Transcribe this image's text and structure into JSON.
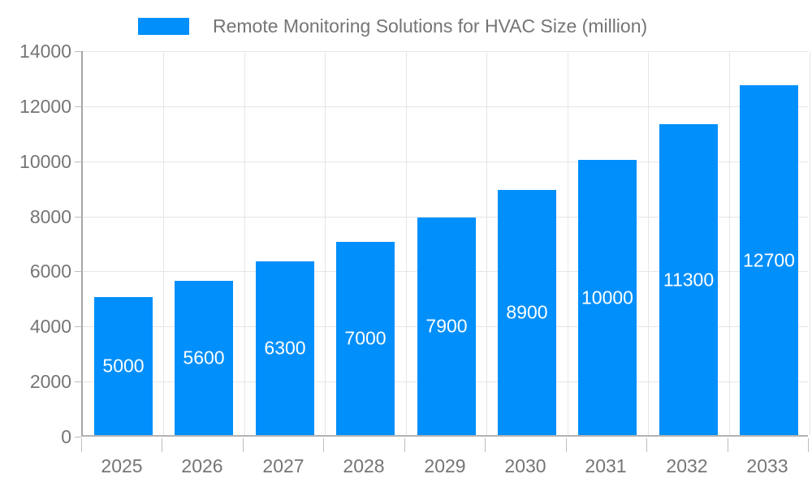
{
  "legend": {
    "label": "Remote Monitoring Solutions for HVAC Size (million)",
    "swatch_color": "#008FFB"
  },
  "colors": {
    "bar": "#008FFB",
    "bar_label": "#ffffff",
    "axis_text": "#757575",
    "grid_line": "#e6e6e6",
    "axis_line": "#a6a6a6",
    "tick": "#bdbdbd",
    "background": "#ffffff"
  },
  "chart_data": {
    "type": "bar",
    "title": "Remote Monitoring Solutions for HVAC Size (million)",
    "categories": [
      "2025",
      "2026",
      "2027",
      "2028",
      "2029",
      "2030",
      "2031",
      "2032",
      "2033"
    ],
    "values": [
      5000,
      5600,
      6300,
      7000,
      7900,
      8900,
      10000,
      11300,
      12700
    ],
    "xlabel": "",
    "ylabel": "",
    "ylim": [
      0,
      14000
    ],
    "yticks": [
      0,
      2000,
      4000,
      6000,
      8000,
      10000,
      12000,
      14000
    ],
    "grid": true,
    "legend_position": "top",
    "value_labels": "inside-center"
  }
}
